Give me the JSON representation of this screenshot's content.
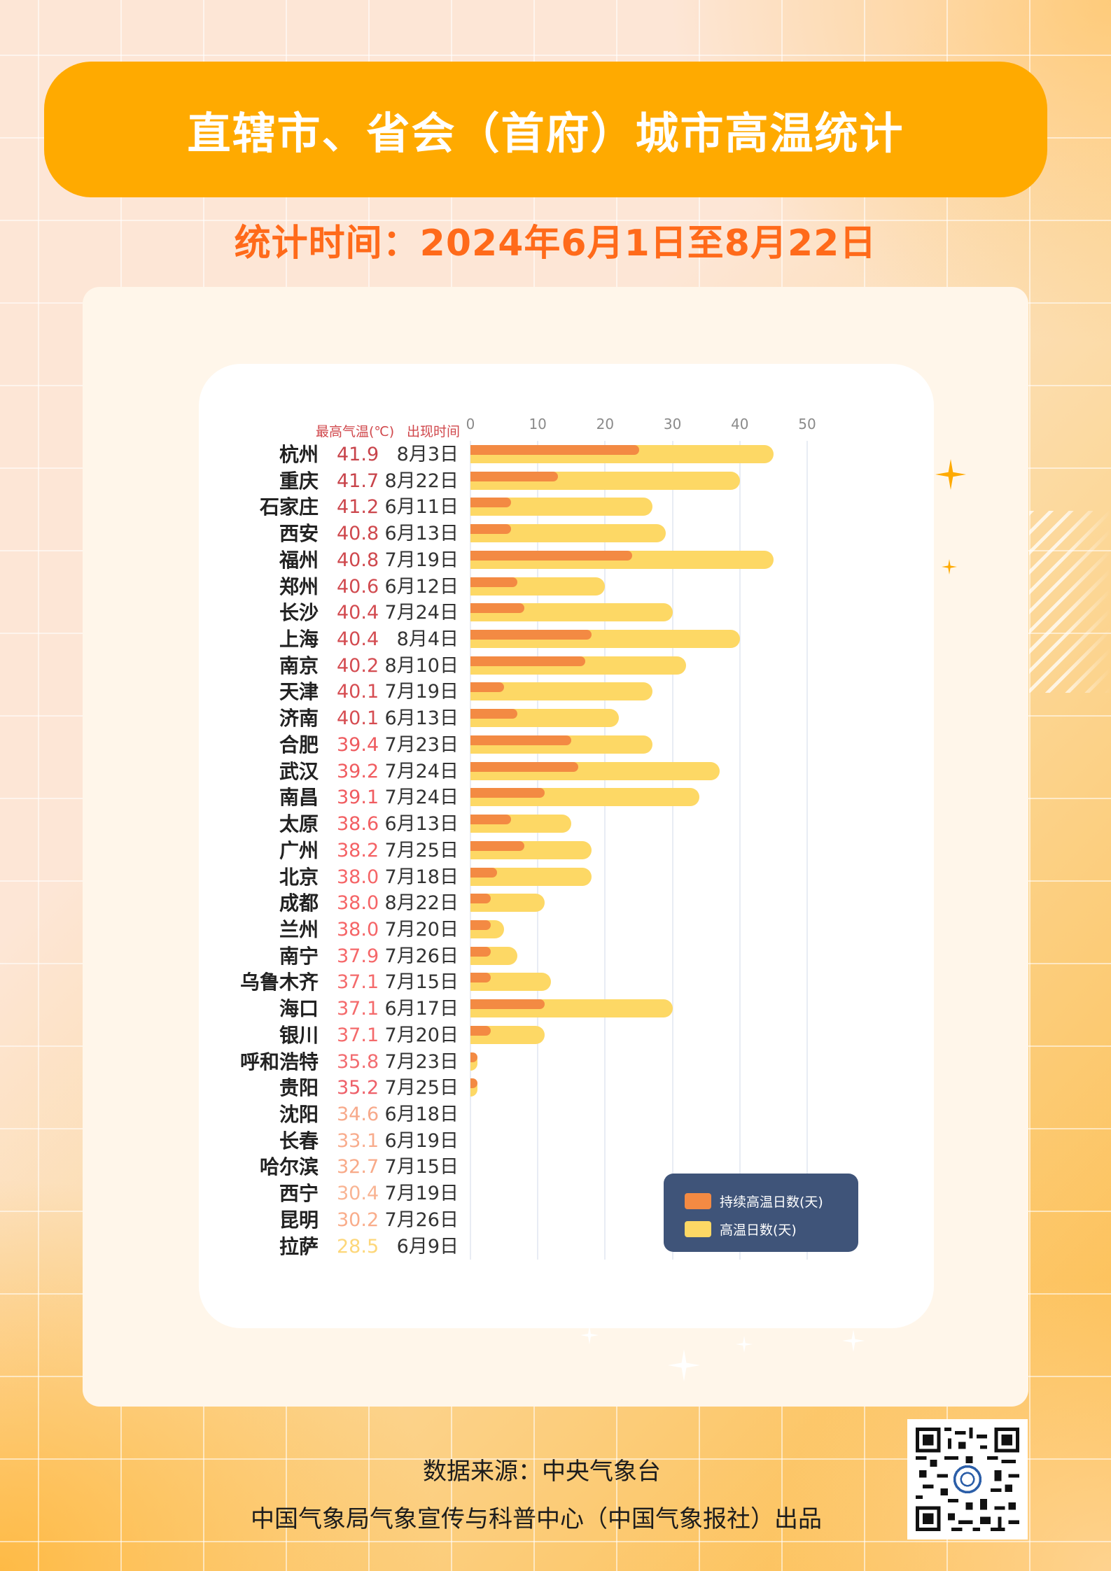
{
  "header": {
    "title": "直辖市、省会（首府）城市高温统计",
    "subtitle": "统计时间：2024年6月1日至8月22日"
  },
  "chart_columns": {
    "max_temp_header": "最高气温(℃)",
    "date_header": "出现时间"
  },
  "colors": {
    "title_bar": "#FFAA00",
    "subtitle": "#FF6A1A",
    "consecutive_days": "#F38A43",
    "high_temp_days": "#FDD865",
    "legend_bg": "#3f5479"
  },
  "legend": {
    "items": [
      {
        "label": "持续高温日数(天)",
        "color": "#F38A43"
      },
      {
        "label": "高温日数(天)",
        "color": "#FDD865"
      }
    ]
  },
  "chart_data": {
    "type": "bar",
    "orientation": "horizontal",
    "title": "直辖市、省会（首府）城市高温统计",
    "subtitle": "统计时间：2024年6月1日至8月22日",
    "xlabel": "",
    "ylabel": "",
    "xlim": [
      0,
      50
    ],
    "x_ticks": [
      0,
      10,
      20,
      30,
      40,
      50
    ],
    "grid": true,
    "legend_position": "bottom-right",
    "categories": [
      "杭州",
      "重庆",
      "石家庄",
      "西安",
      "福州",
      "郑州",
      "长沙",
      "上海",
      "南京",
      "天津",
      "济南",
      "合肥",
      "武汉",
      "南昌",
      "太原",
      "广州",
      "北京",
      "成都",
      "兰州",
      "南宁",
      "乌鲁木齐",
      "海口",
      "银川",
      "呼和浩特",
      "贵阳",
      "沈阳",
      "长春",
      "哈尔滨",
      "西宁",
      "昆明",
      "拉萨"
    ],
    "series": [
      {
        "name": "持续高温日数(天)",
        "values": [
          25,
          13,
          6,
          6,
          24,
          7,
          8,
          18,
          17,
          5,
          7,
          15,
          16,
          11,
          6,
          8,
          4,
          3,
          3,
          3,
          3,
          11,
          3,
          1,
          1,
          0,
          0,
          0,
          0,
          0,
          0
        ]
      },
      {
        "name": "高温日数(天)",
        "values": [
          45,
          40,
          27,
          29,
          45,
          20,
          30,
          40,
          32,
          27,
          22,
          27,
          37,
          34,
          15,
          18,
          18,
          11,
          5,
          7,
          12,
          30,
          11,
          1,
          1,
          0,
          0,
          0,
          0,
          0,
          0
        ]
      }
    ],
    "table_columns": {
      "max_temp_c": [
        41.9,
        41.7,
        41.2,
        40.8,
        40.8,
        40.6,
        40.4,
        40.4,
        40.2,
        40.1,
        40.1,
        39.4,
        39.2,
        39.1,
        38.6,
        38.2,
        38.0,
        38.0,
        38.0,
        37.9,
        37.1,
        37.1,
        37.1,
        35.8,
        35.2,
        34.6,
        33.1,
        32.7,
        30.4,
        30.2,
        28.5
      ],
      "date": [
        "8月3日",
        "8月22日",
        "6月11日",
        "6月13日",
        "7月19日",
        "6月12日",
        "7月24日",
        "8月4日",
        "8月10日",
        "7月19日",
        "6月13日",
        "7月23日",
        "7月24日",
        "7月24日",
        "6月13日",
        "7月25日",
        "7月18日",
        "8月22日",
        "7月20日",
        "7月26日",
        "7月15日",
        "6月17日",
        "7月20日",
        "7月23日",
        "7月25日",
        "6月18日",
        "6月19日",
        "7月15日",
        "7月19日",
        "7月26日",
        "6月9日"
      ]
    }
  },
  "rows": [
    {
      "city": "杭州",
      "temp": "41.9",
      "date": "8月3日",
      "consecutive": 25,
      "total": 45,
      "temp_color": "#c8434a"
    },
    {
      "city": "重庆",
      "temp": "41.7",
      "date": "8月22日",
      "consecutive": 13,
      "total": 40,
      "temp_color": "#c8434a"
    },
    {
      "city": "石家庄",
      "temp": "41.2",
      "date": "6月11日",
      "consecutive": 6,
      "total": 27,
      "temp_color": "#cc464c"
    },
    {
      "city": "西安",
      "temp": "40.8",
      "date": "6月13日",
      "consecutive": 6,
      "total": 29,
      "temp_color": "#cf484d"
    },
    {
      "city": "福州",
      "temp": "40.8",
      "date": "7月19日",
      "consecutive": 24,
      "total": 45,
      "temp_color": "#cf484d"
    },
    {
      "city": "郑州",
      "temp": "40.6",
      "date": "6月12日",
      "consecutive": 7,
      "total": 20,
      "temp_color": "#d14a4f"
    },
    {
      "city": "长沙",
      "temp": "40.4",
      "date": "7月24日",
      "consecutive": 8,
      "total": 30,
      "temp_color": "#d34b50"
    },
    {
      "city": "上海",
      "temp": "40.4",
      "date": "8月4日",
      "consecutive": 18,
      "total": 40,
      "temp_color": "#d34b50"
    },
    {
      "city": "南京",
      "temp": "40.2",
      "date": "8月10日",
      "consecutive": 17,
      "total": 32,
      "temp_color": "#d44c51"
    },
    {
      "city": "天津",
      "temp": "40.1",
      "date": "7月19日",
      "consecutive": 5,
      "total": 27,
      "temp_color": "#d64d52"
    },
    {
      "city": "济南",
      "temp": "40.1",
      "date": "6月13日",
      "consecutive": 7,
      "total": 22,
      "temp_color": "#d64d52"
    },
    {
      "city": "合肥",
      "temp": "39.4",
      "date": "7月23日",
      "consecutive": 15,
      "total": 27,
      "temp_color": "#ee5a5e"
    },
    {
      "city": "武汉",
      "temp": "39.2",
      "date": "7月24日",
      "consecutive": 16,
      "total": 37,
      "temp_color": "#f05c60"
    },
    {
      "city": "南昌",
      "temp": "39.1",
      "date": "7月24日",
      "consecutive": 11,
      "total": 34,
      "temp_color": "#f05c60"
    },
    {
      "city": "太原",
      "temp": "38.6",
      "date": "6月13日",
      "consecutive": 6,
      "total": 15,
      "temp_color": "#f25f62"
    },
    {
      "city": "广州",
      "temp": "38.2",
      "date": "7月25日",
      "consecutive": 8,
      "total": 18,
      "temp_color": "#f46265"
    },
    {
      "city": "北京",
      "temp": "38.0",
      "date": "7月18日",
      "consecutive": 4,
      "total": 18,
      "temp_color": "#f56567"
    },
    {
      "city": "成都",
      "temp": "38.0",
      "date": "8月22日",
      "consecutive": 3,
      "total": 11,
      "temp_color": "#f56567"
    },
    {
      "city": "兰州",
      "temp": "38.0",
      "date": "7月20日",
      "consecutive": 3,
      "total": 5,
      "temp_color": "#f56567"
    },
    {
      "city": "南宁",
      "temp": "37.9",
      "date": "7月26日",
      "consecutive": 3,
      "total": 7,
      "temp_color": "#f56769"
    },
    {
      "city": "乌鲁木齐",
      "temp": "37.1",
      "date": "7月15日",
      "consecutive": 3,
      "total": 12,
      "temp_color": "#f46a6b"
    },
    {
      "city": "海口",
      "temp": "37.1",
      "date": "6月17日",
      "consecutive": 11,
      "total": 30,
      "temp_color": "#f46a6b"
    },
    {
      "city": "银川",
      "temp": "37.1",
      "date": "7月20日",
      "consecutive": 3,
      "total": 11,
      "temp_color": "#f46a6b"
    },
    {
      "city": "呼和浩特",
      "temp": "35.8",
      "date": "7月23日",
      "consecutive": 1,
      "total": 1,
      "temp_color": "#f26c70"
    },
    {
      "city": "贵阳",
      "temp": "35.2",
      "date": "7月25日",
      "consecutive": 1,
      "total": 1,
      "temp_color": "#ee6069"
    },
    {
      "city": "沈阳",
      "temp": "34.6",
      "date": "6月18日",
      "consecutive": 0,
      "total": 0,
      "temp_color": "#f7a98a"
    },
    {
      "city": "长春",
      "temp": "33.1",
      "date": "6月19日",
      "consecutive": 0,
      "total": 0,
      "temp_color": "#f8ac8d"
    },
    {
      "city": "哈尔滨",
      "temp": "32.7",
      "date": "7月15日",
      "consecutive": 0,
      "total": 0,
      "temp_color": "#f8aa89"
    },
    {
      "city": "西宁",
      "temp": "30.4",
      "date": "7月19日",
      "consecutive": 0,
      "total": 0,
      "temp_color": "#f9b493"
    },
    {
      "city": "昆明",
      "temp": "30.2",
      "date": "7月26日",
      "consecutive": 0,
      "total": 0,
      "temp_color": "#f9ad8b"
    },
    {
      "city": "拉萨",
      "temp": "28.5",
      "date": "6月9日",
      "consecutive": 0,
      "total": 0,
      "temp_color": "#fdd77a"
    }
  ],
  "axis": {
    "ticks": [
      "0",
      "10",
      "20",
      "30",
      "40",
      "50"
    ]
  },
  "footer": {
    "source": "数据来源：中央气象台",
    "publisher": "中国气象局气象宣传与科普中心（中国气象报社）出品",
    "qr_icon": "qr-code-icon"
  }
}
